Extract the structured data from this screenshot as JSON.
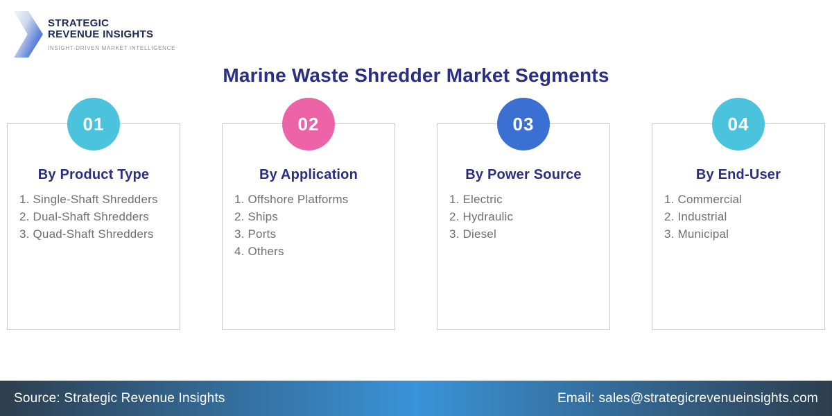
{
  "logo": {
    "name_line1": "STRATEGIC",
    "name_line2": "REVENUE INSIGHTS",
    "tagline": "INSIGHT-DRIVEN MARKET INTELLIGENCE"
  },
  "title": "Marine Waste Shredder Market Segments",
  "cards": [
    {
      "number": "01",
      "circle_color": "#4cc3dd",
      "heading": "By Product Type",
      "items": [
        "1. Single-Shaft Shredders",
        "2. Dual-Shaft Shredders",
        "3. Quad-Shaft Shredders"
      ]
    },
    {
      "number": "02",
      "circle_color": "#ec64a7",
      "heading": "By Application",
      "items": [
        "1. Offshore Platforms",
        "2. Ships",
        "3. Ports",
        "4. Others"
      ]
    },
    {
      "number": "03",
      "circle_color": "#3b70d3",
      "heading": "By Power Source",
      "items": [
        "1. Electric",
        "2. Hydraulic",
        "3. Diesel"
      ]
    },
    {
      "number": "04",
      "circle_color": "#4cc3dd",
      "heading": "By End-User",
      "items": [
        "1. Commercial",
        "2. Industrial",
        "3. Municipal"
      ]
    }
  ],
  "footer": {
    "source_label": "Source: Strategic Revenue Insights",
    "email_label": "Email: sales@strategicrevenueinsights.com"
  },
  "colors": {
    "title_text": "#2b2e83",
    "heading_text": "#2b2d7e",
    "body_text": "#6e6f71",
    "card_border": "#cccccc",
    "footer_dark": "#2d3e4f",
    "footer_blue": "#3a93d8",
    "logo_navy": "#1e2a58",
    "logo_tagline_gray": "#909194"
  }
}
